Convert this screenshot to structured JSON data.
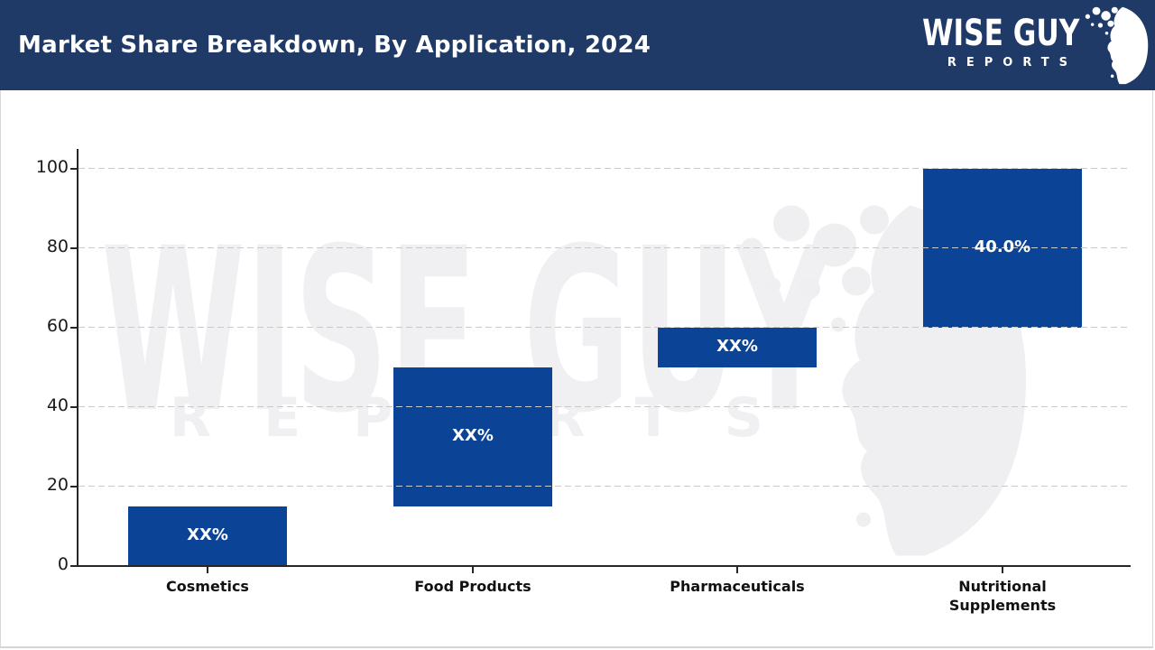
{
  "header": {
    "title": "Market Share Breakdown, By Application, 2024",
    "logo": {
      "name": "WISE GUY",
      "sub": "REPORTS"
    }
  },
  "watermark": {
    "name": "WISE GUY",
    "sub": "REPORTS"
  },
  "chart_data": {
    "type": "bar",
    "variant": "waterfall",
    "title": "Market Share Breakdown, By Application, 2024",
    "categories": [
      "Cosmetics",
      "Food Products",
      "Pharmaceuticals",
      "Nutritional Supplements"
    ],
    "series": [
      {
        "name": "Cosmetics",
        "start": 0,
        "end": 15,
        "value": 15,
        "value_label": "XX%"
      },
      {
        "name": "Food Products",
        "start": 15,
        "end": 50,
        "value": 35,
        "value_label": "XX%"
      },
      {
        "name": "Pharmaceuticals",
        "start": 50,
        "end": 60,
        "value": 10,
        "value_label": "XX%"
      },
      {
        "name": "Nutritional Supplements",
        "start": 60,
        "end": 100,
        "value": 40,
        "value_label": "40.0%"
      }
    ],
    "xlabel": "",
    "ylabel": "",
    "yticks": [
      0,
      20,
      40,
      60,
      80,
      100
    ],
    "ylim": [
      0,
      100
    ],
    "grid": "horizontal-dashed",
    "legend": "none",
    "bar_color": "#0b4397",
    "bar_label_color": "#ffffff"
  },
  "colors": {
    "header_bg": "#1f3a67",
    "bar": "#0b4397",
    "grid": "#c9c9c9",
    "axis": "#262626",
    "watermark": "#f0f0f2",
    "card_border": "#d9d9d9"
  }
}
